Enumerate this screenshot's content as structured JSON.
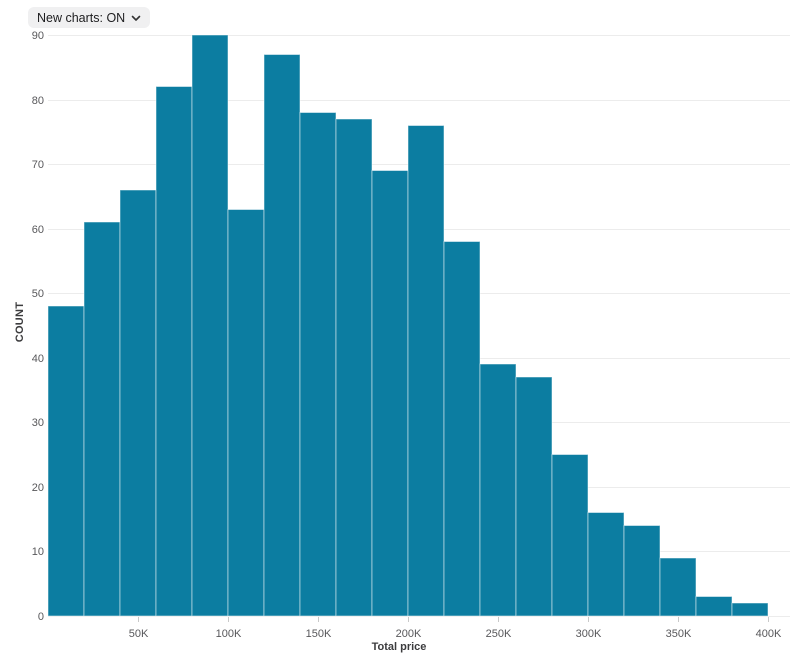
{
  "toolbar": {
    "chart_toggle_label": "New charts: ON",
    "chevron_icon": "chevron-down"
  },
  "chart_data": {
    "type": "bar",
    "subtype": "histogram",
    "title": "",
    "xlabel": "Total price",
    "ylabel": "COUNT",
    "bin_start": 0,
    "bin_width": 20000,
    "counts": [
      48,
      61,
      66,
      82,
      90,
      63,
      87,
      78,
      77,
      69,
      76,
      58,
      39,
      37,
      25,
      16,
      14,
      9,
      3,
      2
    ],
    "x_ticks": [
      {
        "value": 50000,
        "label": "50K"
      },
      {
        "value": 100000,
        "label": "100K"
      },
      {
        "value": 150000,
        "label": "150K"
      },
      {
        "value": 200000,
        "label": "200K"
      },
      {
        "value": 250000,
        "label": "250K"
      },
      {
        "value": 300000,
        "label": "300K"
      },
      {
        "value": 350000,
        "label": "350K"
      },
      {
        "value": 400000,
        "label": "400K"
      }
    ],
    "y_ticks": [
      0,
      10,
      20,
      30,
      40,
      50,
      60,
      70,
      80,
      90
    ],
    "xlim": [
      0,
      400000
    ],
    "ylim": [
      0,
      90
    ],
    "grid": "horizontal",
    "legend": "none",
    "colors": {
      "bar_fill": "#0c7da1",
      "bar_stroke": "rgba(255,255,255,0.5)",
      "gridline": "#ececec",
      "tick_mark": "#c9c9c9",
      "tick_label": "#58585b",
      "axis_title": "#3c3c3e",
      "toggle_bg": "#f0f0f1",
      "toggle_text": "#1d1d1f"
    }
  }
}
